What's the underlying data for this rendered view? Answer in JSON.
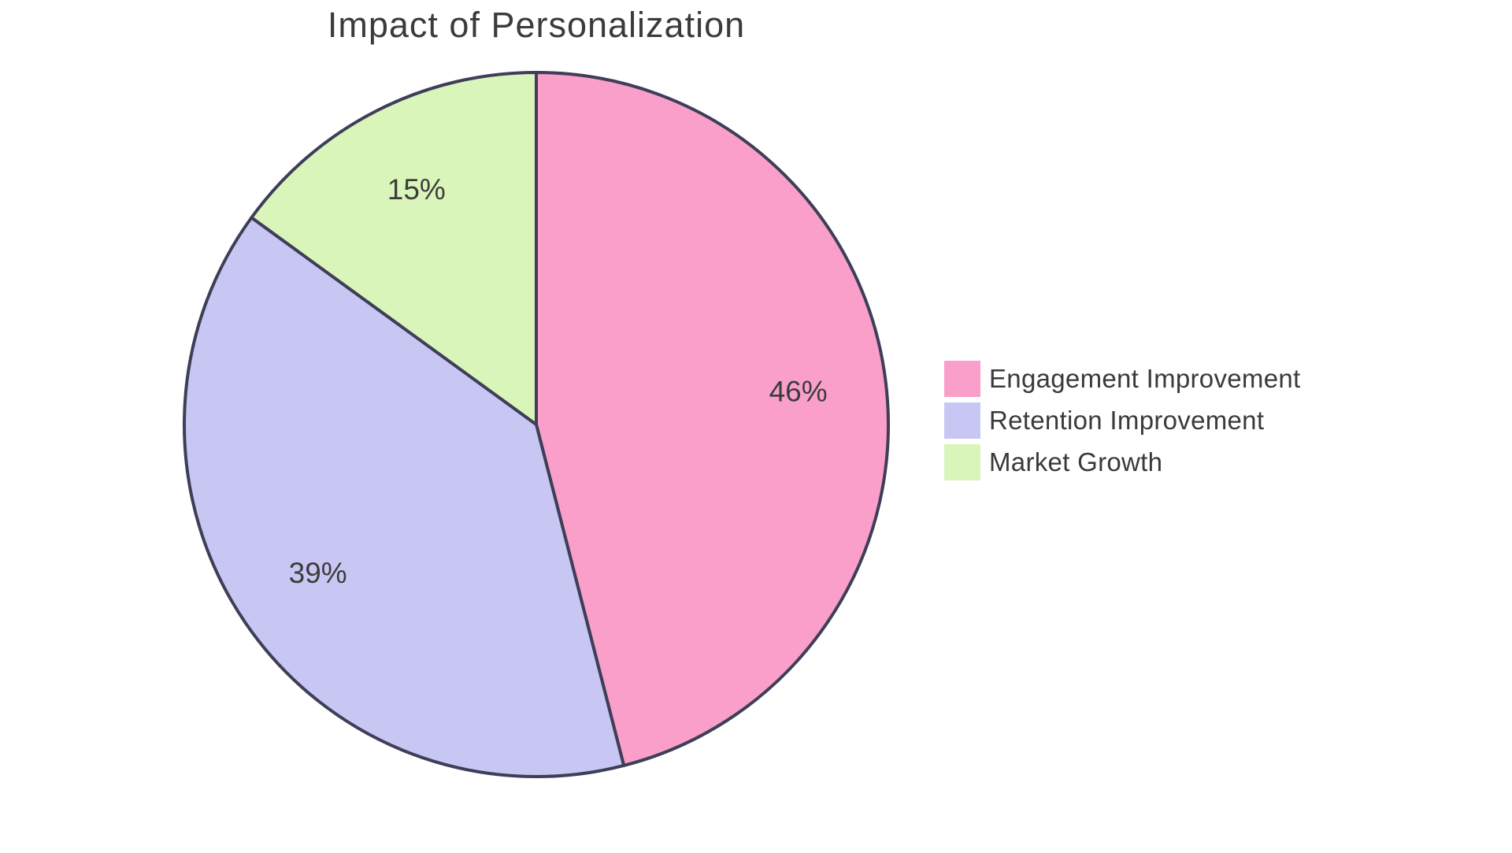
{
  "chart_data": {
    "type": "pie",
    "title": "Impact of Personalization",
    "categories": [
      "Engagement Improvement",
      "Retention Improvement",
      "Market Growth"
    ],
    "values": [
      46,
      39,
      15
    ],
    "slices": [
      {
        "label": "Engagement Improvement",
        "value": 46,
        "pct_label": "46%",
        "color": "#F99FCA"
      },
      {
        "label": "Retention Improvement",
        "value": 39,
        "pct_label": "39%",
        "color": "#C8C7F3"
      },
      {
        "label": "Market Growth",
        "value": 15,
        "pct_label": "15%",
        "color": "#D9F5BA"
      }
    ],
    "start_angle_deg": 0,
    "direction": "clockwise",
    "legend_position": "right",
    "stroke_color": "#3E3E58",
    "label_color": "#3C3C3C",
    "title_color": "#3B3B3B"
  }
}
